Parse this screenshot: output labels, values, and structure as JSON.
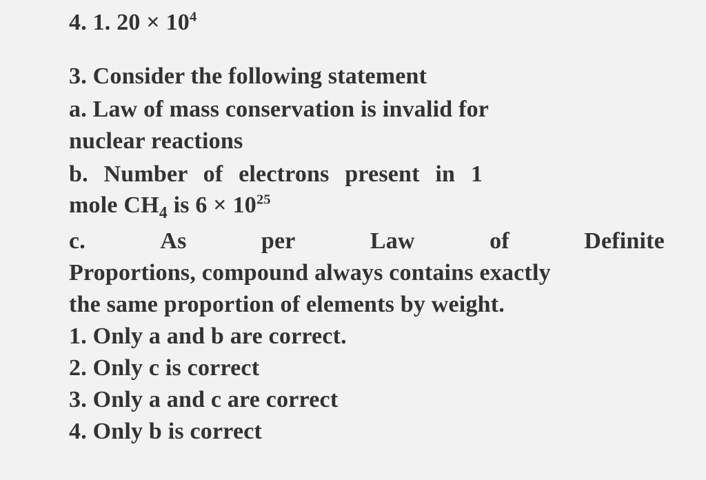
{
  "previous_option": {
    "number": "4.",
    "text": "1. 20 × 10",
    "exponent": "4"
  },
  "question": {
    "number": "3.",
    "prompt": "Consider the following statement",
    "statements": {
      "a": {
        "label": "a.",
        "line1_rest": "Law of mass conservation is invalid for",
        "line2": "nuclear reactions"
      },
      "b": {
        "label": "b.",
        "line1_rest": "Number   of   electrons   present   in   1",
        "line2_pre": "mole CH",
        "sub": "4",
        "line2_mid": " is 6 × 10",
        "exp": "25"
      },
      "c": {
        "label": "c.",
        "w1": "As",
        "w2": "per",
        "w3": "Law",
        "w4": "of",
        "w5": "Definite",
        "line2": "Proportions, compound always contains exactly",
        "line3": "the same proportion of elements by weight."
      }
    },
    "options": {
      "o1": "1. Only a and b are correct.",
      "o2": "2. Only c is correct",
      "o3": "3. Only a and c are correct",
      "o4": "4. Only b is correct"
    }
  },
  "style": {
    "text_color": "#333333",
    "background": "#f2f2f2",
    "font_size_pt": 26,
    "font_weight": 700
  }
}
